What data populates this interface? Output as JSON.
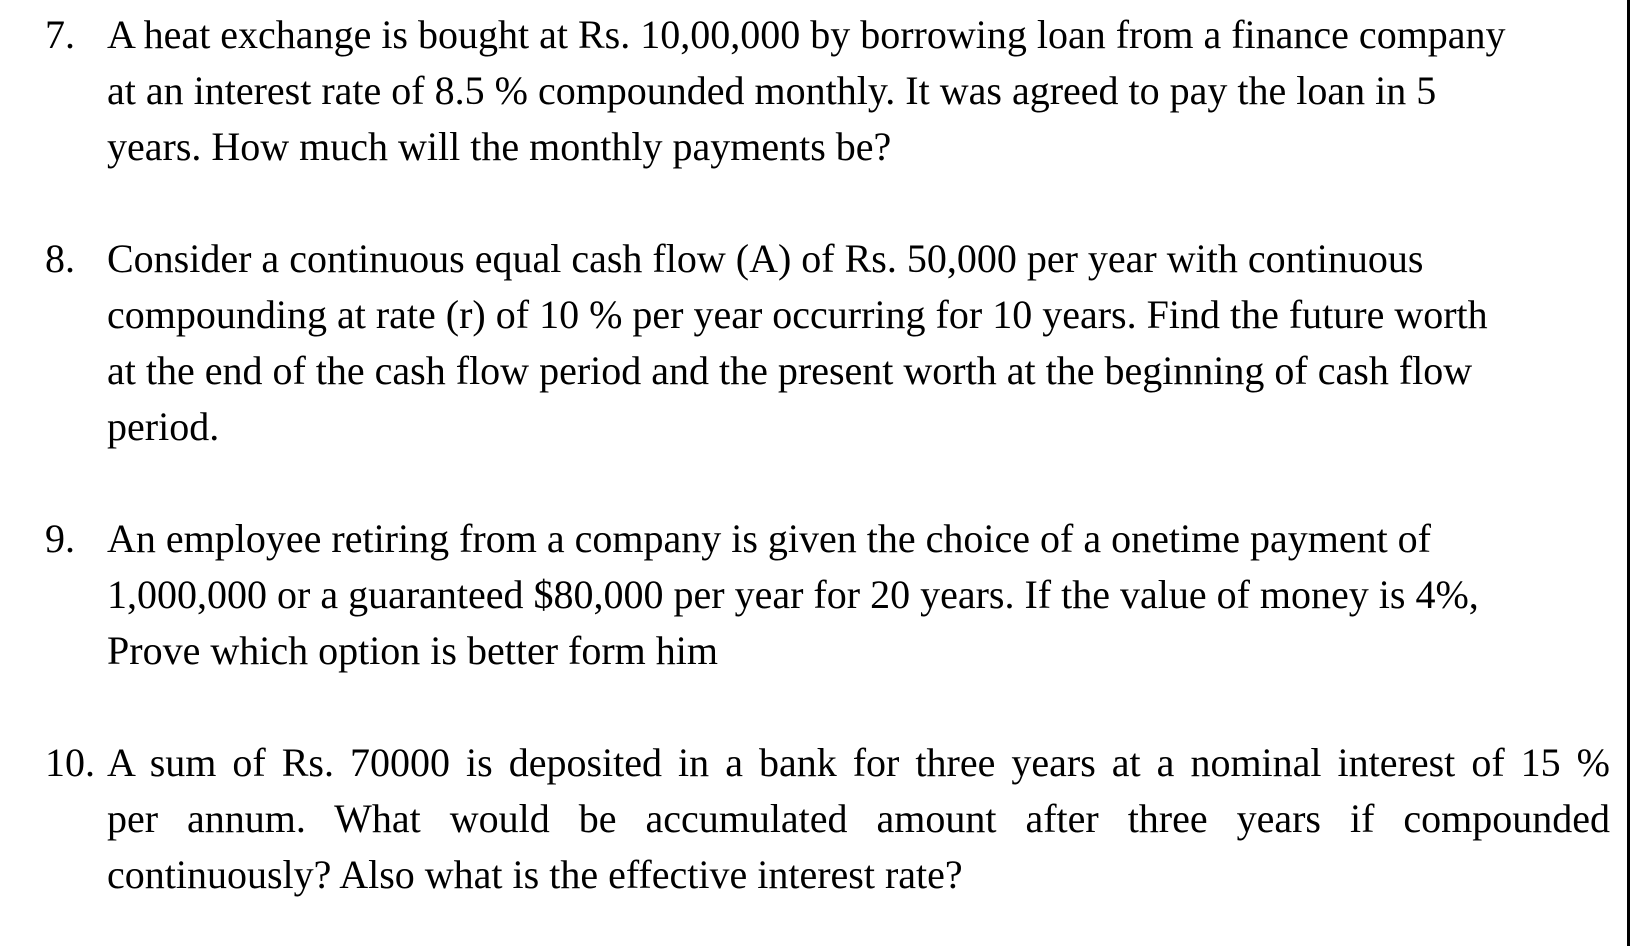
{
  "page": {
    "background_color": "#ffffff",
    "text_color": "#000000",
    "border_color": "#000000"
  },
  "questions": [
    {
      "number": "7.",
      "lines": [
        "A heat exchange is bought at Rs. 10,00,000 by borrowing loan from a finance company",
        "at an interest rate of 8.5 % compounded monthly. It was agreed to pay the loan in 5",
        "years. How much will the monthly payments be?"
      ]
    },
    {
      "number": "8.",
      "lines": [
        "Consider a continuous equal cash flow (A) of Rs. 50,000 per year with continuous",
        "compounding at rate (r) of 10 % per year occurring for 10 years. Find the future worth",
        "at the end of the cash flow period and the present worth at the beginning of cash flow",
        "period."
      ]
    },
    {
      "number": "9.",
      "lines": [
        "An employee retiring from a company is given the choice of a onetime payment of",
        "1,000,000 or a guaranteed $80,000 per year for 20 years. If the value of money is 4%,",
        "Prove which option is better form him"
      ]
    },
    {
      "number": "10.",
      "lines": [
        "A sum of Rs. 70000 is deposited in a bank for three years at a nominal interest of 15 %",
        "per annum. What would be accumulated amount after three years if compounded",
        "continuously? Also what is the effective interest rate?"
      ]
    }
  ]
}
